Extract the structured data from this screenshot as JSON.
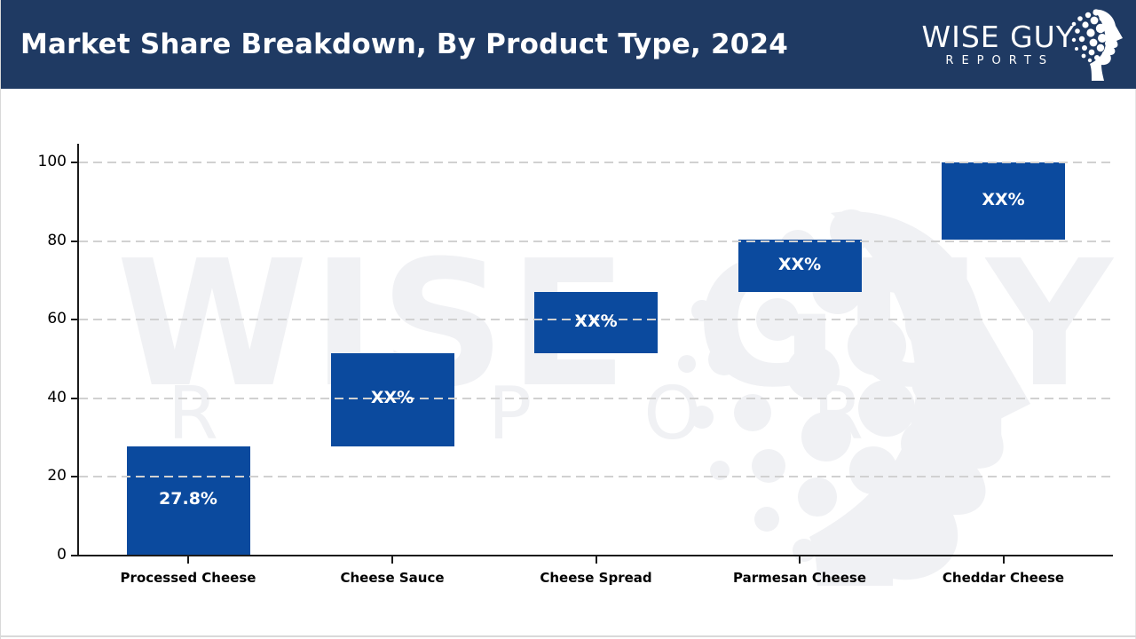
{
  "header": {
    "title": "Market Share Breakdown, By Product Type, 2024",
    "bg_color": "#1f3a63",
    "logo": {
      "line1": "WISE GUY",
      "line2": "REPORTS"
    }
  },
  "watermark": {
    "line1": "WISE GUY",
    "line2": "R E P O R T S"
  },
  "chart_data": {
    "type": "waterfall",
    "categories": [
      "Processed Cheese",
      "Cheese Sauce",
      "Cheese Spread",
      "Parmesan Cheese",
      "Cheddar Cheese"
    ],
    "segments": [
      {
        "category": "Processed Cheese",
        "start": 0,
        "end": 27.8,
        "label": "27.8%"
      },
      {
        "category": "Cheese Sauce",
        "start": 27.8,
        "end": 51.5,
        "label": "XX%"
      },
      {
        "category": "Cheese Spread",
        "start": 51.5,
        "end": 67,
        "label": "XX%"
      },
      {
        "category": "Parmesan Cheese",
        "start": 67,
        "end": 80.3,
        "label": "XX%"
      },
      {
        "category": "Cheddar Cheese",
        "start": 80.3,
        "end": 100,
        "label": "XX%"
      }
    ],
    "yticks": [
      0,
      20,
      40,
      60,
      80,
      100
    ],
    "ylim": [
      0,
      105
    ],
    "xlabel": "",
    "ylabel": "",
    "grid": "horizontal-dashed",
    "legend": "none",
    "bar_color": "#0b4a9e",
    "bar_label_color": "#ffffff",
    "gridline_color": "#d1d1d1",
    "axis_color": "#1a1a1a"
  }
}
